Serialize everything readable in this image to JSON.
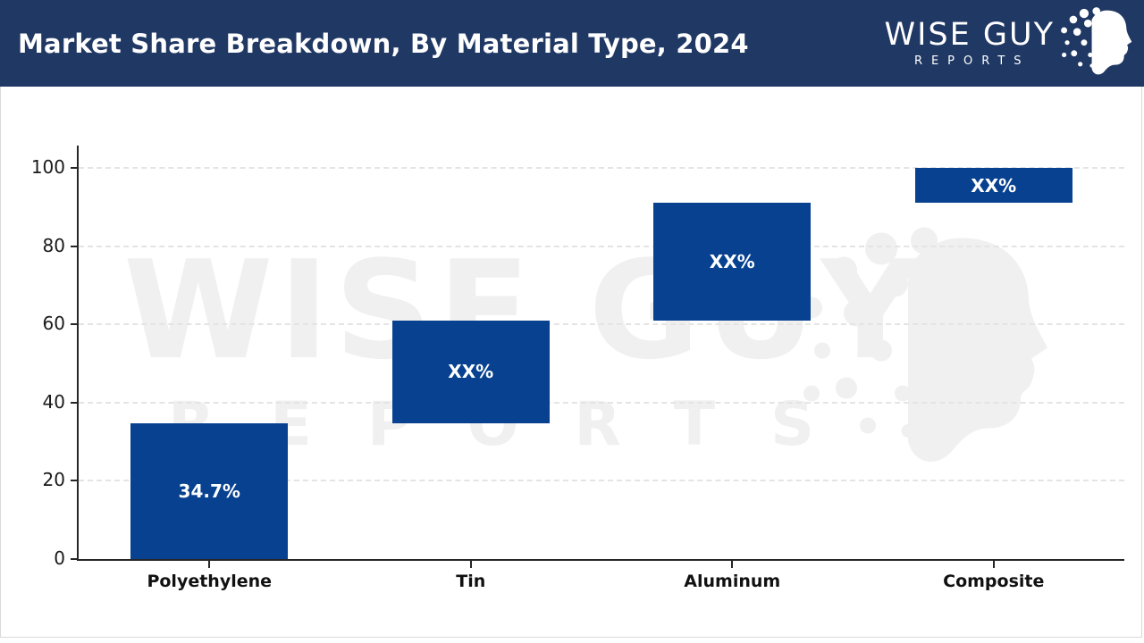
{
  "header": {
    "title": "Market Share Breakdown, By Material Type, 2024",
    "background_color": "#203864",
    "logo": {
      "line1": "WISE GUY",
      "line2": "REPORTS"
    }
  },
  "watermark": {
    "line1": "WISE GUY",
    "line2": "REPORTS"
  },
  "chart_data": {
    "type": "bar",
    "subtype": "waterfall",
    "title": "Market Share Breakdown, By Material Type, 2024",
    "categories": [
      "Polyethylene",
      "Tin",
      "Aluminum",
      "Composite"
    ],
    "segments": [
      {
        "category": "Polyethylene",
        "start": 0,
        "end": 34.7,
        "label": "34.7%"
      },
      {
        "category": "Tin",
        "start": 34.7,
        "end": 61,
        "label": "XX%"
      },
      {
        "category": "Aluminum",
        "start": 61,
        "end": 91,
        "label": "XX%"
      },
      {
        "category": "Composite",
        "start": 91,
        "end": 100,
        "label": "XX%"
      }
    ],
    "xlabel": "",
    "ylabel": "",
    "ylim": [
      0,
      100
    ],
    "yticks": [
      0,
      20,
      40,
      60,
      80,
      100
    ],
    "grid": "horizontal-dashed",
    "legend": "none",
    "bar_color": "#07418f",
    "bar_label_color": "#ffffff"
  }
}
